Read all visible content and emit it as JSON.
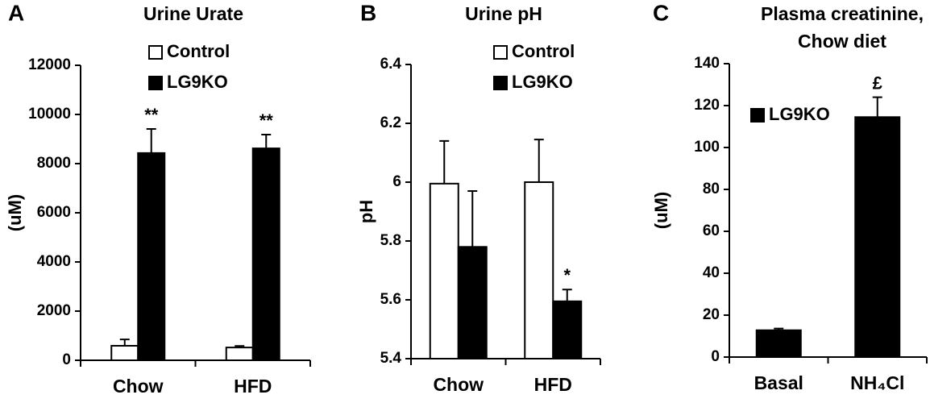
{
  "chart_data": [
    {
      "type": "bar",
      "panel_label": "A",
      "title": "Urine Urate",
      "ylabel": "(uM)",
      "categories": [
        "Chow",
        "HFD"
      ],
      "series": [
        {
          "name": "Control",
          "color": "#ffffff",
          "values": [
            590,
            520
          ],
          "errors": [
            260,
            60
          ]
        },
        {
          "name": "LG9KO",
          "color": "#000000",
          "values": [
            8430,
            8620
          ],
          "errors": [
            980,
            560
          ],
          "annotations": [
            "**",
            "**"
          ]
        }
      ],
      "ylim": [
        0,
        12000
      ],
      "yticks": [
        0,
        2000,
        4000,
        6000,
        8000,
        10000,
        12000
      ],
      "legend": "upper center"
    },
    {
      "type": "bar",
      "panel_label": "B",
      "title": "Urine pH",
      "ylabel": "pH",
      "categories": [
        "Chow",
        "HFD"
      ],
      "series": [
        {
          "name": "Control",
          "color": "#ffffff",
          "values": [
            5.995,
            6.0
          ],
          "errors": [
            0.145,
            0.145
          ]
        },
        {
          "name": "LG9KO",
          "color": "#000000",
          "values": [
            5.78,
            5.595
          ],
          "errors": [
            0.19,
            0.04
          ],
          "annotations": [
            null,
            "*"
          ]
        }
      ],
      "ylim": [
        5.4,
        6.4
      ],
      "yticks": [
        5.4,
        5.6,
        5.8,
        6,
        6.2,
        6.4
      ],
      "legend": "upper right"
    },
    {
      "type": "bar",
      "panel_label": "C",
      "title": "Plasma creatinine, Chow diet",
      "ylabel": "(uM)",
      "categories": [
        "Basal",
        "NH₄Cl"
      ],
      "series": [
        {
          "name": "LG9KO",
          "color": "#000000",
          "values": [
            12.8,
            114.5
          ],
          "errors": [
            0.8,
            9.5
          ],
          "annotations": [
            null,
            "£"
          ]
        }
      ],
      "ylim": [
        0,
        140
      ],
      "yticks": [
        0,
        20,
        40,
        60,
        80,
        100,
        120,
        140
      ],
      "legend": "upper left"
    }
  ]
}
